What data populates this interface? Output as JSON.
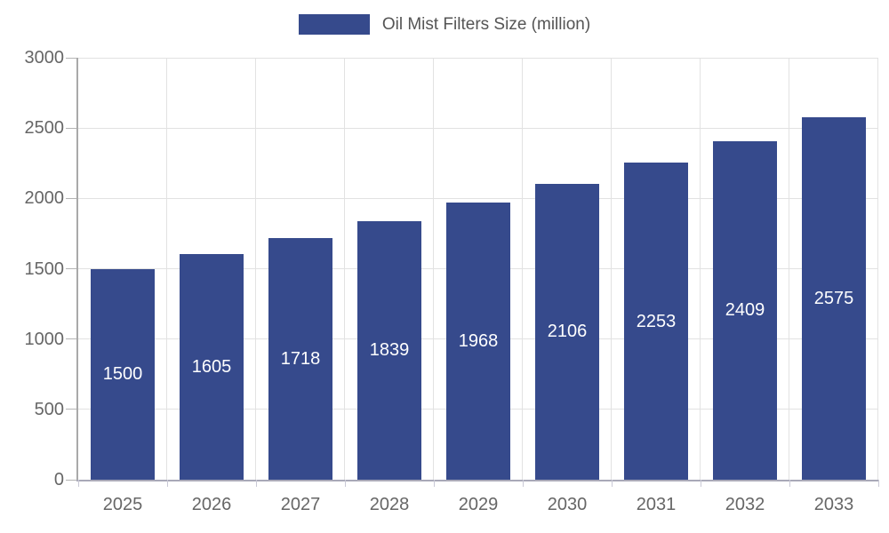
{
  "legend": {
    "label": "Oil Mist Filters Size (million)"
  },
  "chart_data": {
    "type": "bar",
    "title": "Oil Mist Filters Size (million)",
    "categories": [
      "2025",
      "2026",
      "2027",
      "2028",
      "2029",
      "2030",
      "2031",
      "2032",
      "2033"
    ],
    "values": [
      1500,
      1605,
      1718,
      1839,
      1968,
      2106,
      2253,
      2409,
      2575
    ],
    "xlabel": "",
    "ylabel": "",
    "ylim": [
      0,
      3000
    ],
    "yticks": [
      0,
      500,
      1000,
      1500,
      2000,
      2500,
      3000
    ],
    "grid": true,
    "legend_position": "top",
    "colors": {
      "bar": "#364a8c",
      "value_label": "#ffffff",
      "axis_label": "#666666",
      "legend_text": "#555555",
      "gridline": "#e2e2e2",
      "axis_line": "#a9a9a9"
    }
  }
}
